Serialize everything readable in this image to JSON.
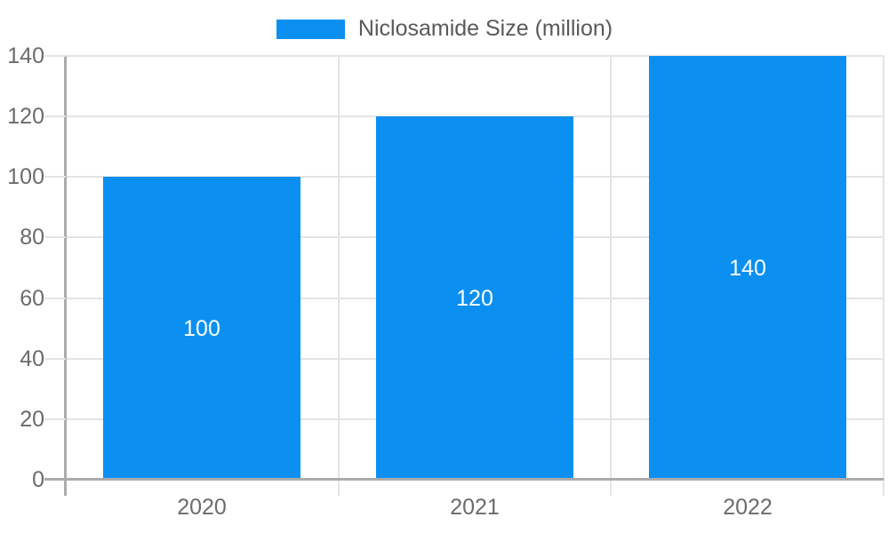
{
  "chart_data": {
    "type": "bar",
    "title": "",
    "categories": [
      "2020",
      "2021",
      "2022"
    ],
    "series": [
      {
        "name": "Niclosamide Size (million)",
        "values": [
          100,
          120,
          140
        ]
      }
    ],
    "data_labels": [
      "100",
      "120",
      "140"
    ],
    "xlabel": "",
    "ylabel": "",
    "ylim": [
      0,
      140
    ],
    "yticks": [
      0,
      20,
      40,
      60,
      80,
      100,
      120,
      140
    ],
    "grid": true,
    "legend_position": "top",
    "data_label_position": "inside-center"
  },
  "colors": {
    "bar": "#0b90f2",
    "gridline": "#e4e4e4",
    "axis_line": "#ababab",
    "axis_text": "#6b6b6b",
    "legend_text": "#595959",
    "data_label": "#ffffff",
    "background": "#ffffff"
  }
}
